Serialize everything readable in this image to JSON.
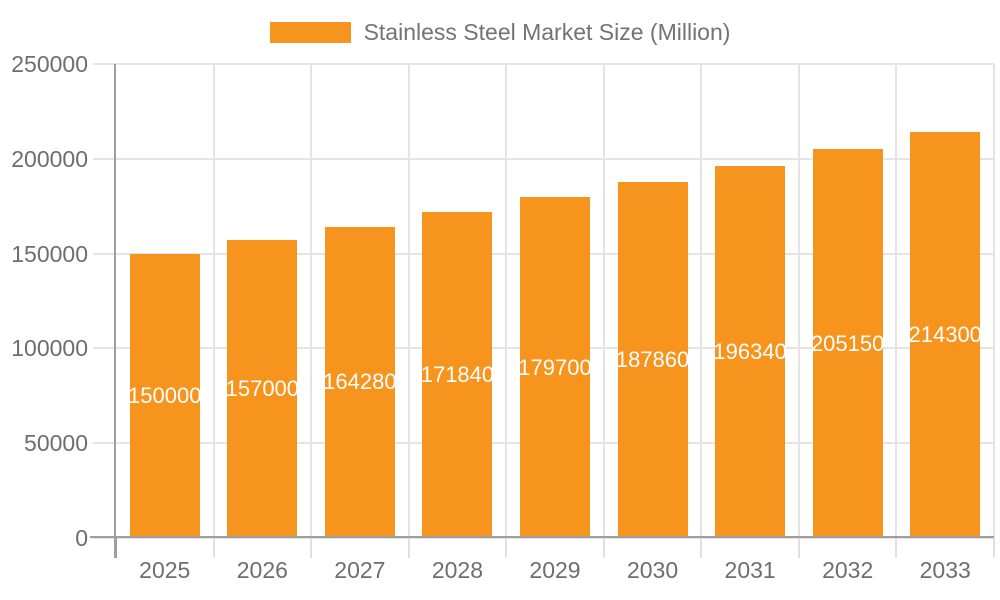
{
  "chart_data": {
    "type": "bar",
    "title": "Stainless Steel Market Size (Million)",
    "categories": [
      "2025",
      "2026",
      "2027",
      "2028",
      "2029",
      "2030",
      "2031",
      "2032",
      "2033"
    ],
    "series": [
      {
        "name": "Stainless Steel Market Size (Million)",
        "values": [
          150000,
          157000,
          164280,
          171840,
          179700,
          187860,
          196340,
          205150,
          214300
        ],
        "color": "#F7941E"
      }
    ],
    "bar_value_labels": [
      "150000",
      "157000",
      "164280",
      "171840",
      "179700",
      "187860",
      "196340",
      "205150",
      "214300"
    ],
    "xlabel": "",
    "ylabel": "",
    "ylim": [
      0,
      250000
    ],
    "y_ticks": [
      0,
      50000,
      100000,
      150000,
      200000,
      250000
    ],
    "y_tick_labels": [
      "0",
      "50000",
      "100000",
      "150000",
      "200000",
      "250000"
    ],
    "grid": true,
    "legend_position": "top"
  },
  "legend": {
    "label": "Stainless Steel Market Size (Million)"
  },
  "colors": {
    "bar": "#F7941E",
    "axis_line": "#9E9E9E",
    "gridline": "#E4E4E4",
    "category_tick": "#E0E0E0",
    "axis_text": "#6E6E6E",
    "legend_text": "#737373",
    "bar_label_text": "#FFFFFF"
  }
}
